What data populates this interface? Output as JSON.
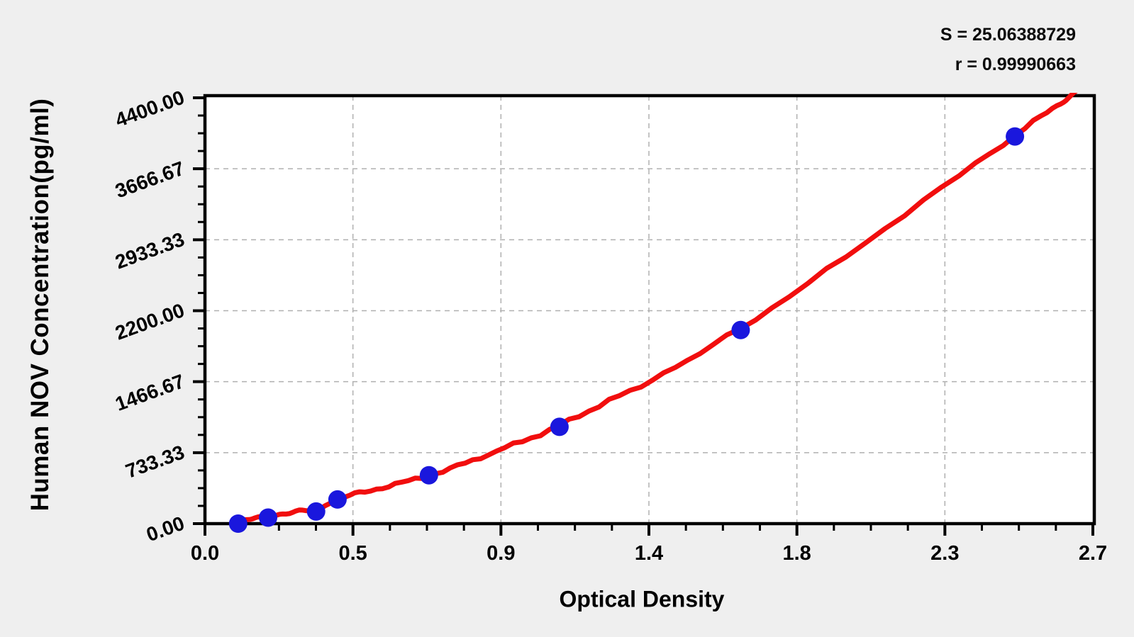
{
  "page": {
    "background": "#efefef"
  },
  "stats": {
    "s_text": "S = 25.06388729",
    "r_text": "r = 0.99990663"
  },
  "chart_data": {
    "type": "scatter",
    "title": "",
    "xlabel": "Optical Density",
    "ylabel": "Human NOV Concentration(pg/ml)",
    "xlim": [
      0,
      2.7
    ],
    "ylim": [
      0,
      4400
    ],
    "x_ticks": {
      "values": [
        0,
        0.45,
        0.9,
        1.35,
        1.8,
        2.25,
        2.7
      ],
      "labels": [
        "0.0",
        "0.5",
        "0.9",
        "1.4",
        "1.8",
        "2.3",
        "2.7"
      ],
      "minor_per_interval": 3
    },
    "y_ticks": {
      "values": [
        0,
        733.33,
        1466.67,
        2200,
        2933.33,
        3666.67,
        4400
      ],
      "labels": [
        "0.00",
        "733.33",
        "1466.67",
        "2200.00",
        "2933.33",
        "3666.67",
        "4400.00"
      ],
      "minor_per_interval": 3
    },
    "grid": {
      "show": true,
      "style": "dashed",
      "color": "#b0b0b0",
      "at": "major-ticks"
    },
    "legend": {
      "show": false
    },
    "points": [
      {
        "od": 0.101,
        "concentration": 0
      },
      {
        "od": 0.192,
        "concentration": 62.5
      },
      {
        "od": 0.338,
        "concentration": 125
      },
      {
        "od": 0.403,
        "concentration": 250
      },
      {
        "od": 0.681,
        "concentration": 500
      },
      {
        "od": 1.078,
        "concentration": 1000
      },
      {
        "od": 1.629,
        "concentration": 2000
      },
      {
        "od": 2.463,
        "concentration": 4000
      }
    ],
    "fit": {
      "S": "25.06388729",
      "r": "0.99990663"
    },
    "curve_path": [
      [
        0.085,
        5
      ],
      [
        0.101,
        18
      ],
      [
        0.192,
        75
      ],
      [
        0.338,
        150
      ],
      [
        0.403,
        260
      ],
      [
        0.681,
        500
      ],
      [
        1.078,
        1020
      ],
      [
        1.629,
        2020
      ],
      [
        2.463,
        4010
      ],
      [
        2.655,
        4480
      ]
    ],
    "colors": {
      "point": "#1a17dd",
      "curve": "#f10e0e",
      "axis": "#000000",
      "plot_bg": "#ffffff",
      "grid": "#b0b0b0"
    }
  }
}
